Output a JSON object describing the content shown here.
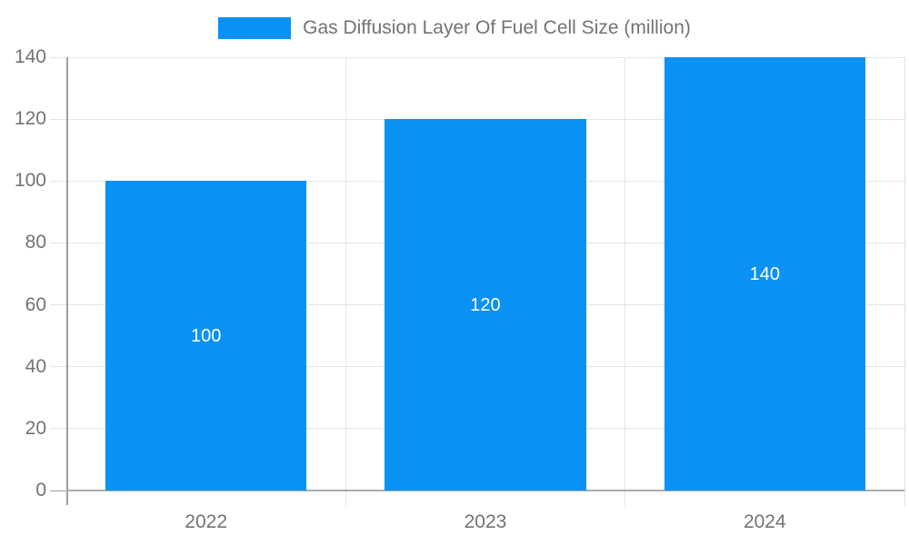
{
  "legend": {
    "label": "Gas Diffusion Layer Of Fuel Cell Size (million)",
    "swatch_color": "#0a91f4"
  },
  "chart_data": {
    "type": "bar",
    "title": "Gas Diffusion Layer Of Fuel Cell Size (million)",
    "categories": [
      "2022",
      "2023",
      "2024"
    ],
    "series": [
      {
        "name": "Gas Diffusion Layer Of Fuel Cell Size (million)",
        "values": [
          100,
          120,
          140
        ]
      }
    ],
    "value_labels": [
      "100",
      "120",
      "140"
    ],
    "xlabel": "",
    "ylabel": "",
    "ylim": [
      0,
      140
    ],
    "ytick_step": 20,
    "yticks": [
      "0",
      "20",
      "40",
      "60",
      "80",
      "100",
      "120",
      "140"
    ],
    "grid": "on",
    "legend_position": "top-center",
    "colors": {
      "bar": "#0a91f4",
      "value_label": "#ffffff",
      "tick_label": "#737373",
      "gridline": "#e5e5e5",
      "axis_line": "#9e9e9e",
      "baseline": "#ababab"
    }
  }
}
